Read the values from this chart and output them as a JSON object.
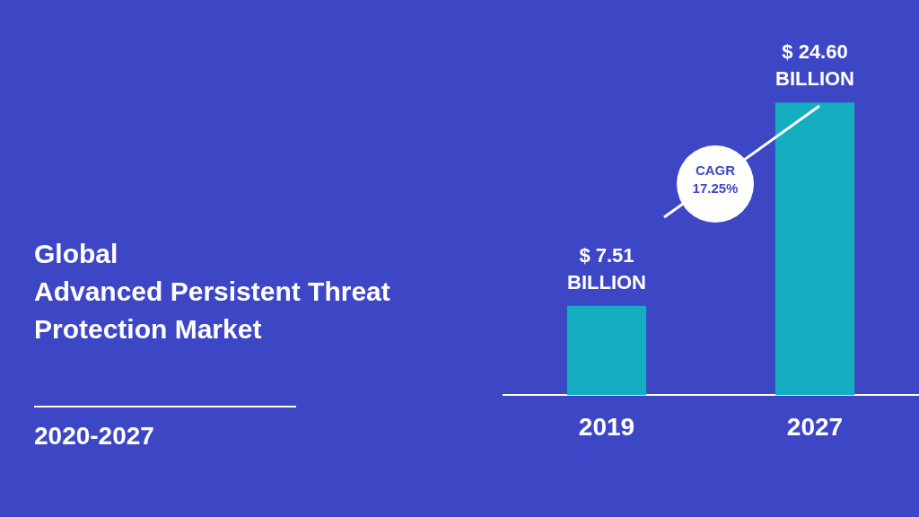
{
  "chart_data": {
    "type": "bar",
    "title": "Global Advanced Persistent Threat Protection Market",
    "subtitle": "2020-2027",
    "categories": [
      "2019",
      "2027"
    ],
    "values": [
      7.51,
      24.6
    ],
    "color": "#15adc0",
    "value_labels": [
      "$ 7.51 BILLION",
      "$ 24.60 BILLION"
    ],
    "annotations": [
      "CAGR 17.25%"
    ]
  }
}
